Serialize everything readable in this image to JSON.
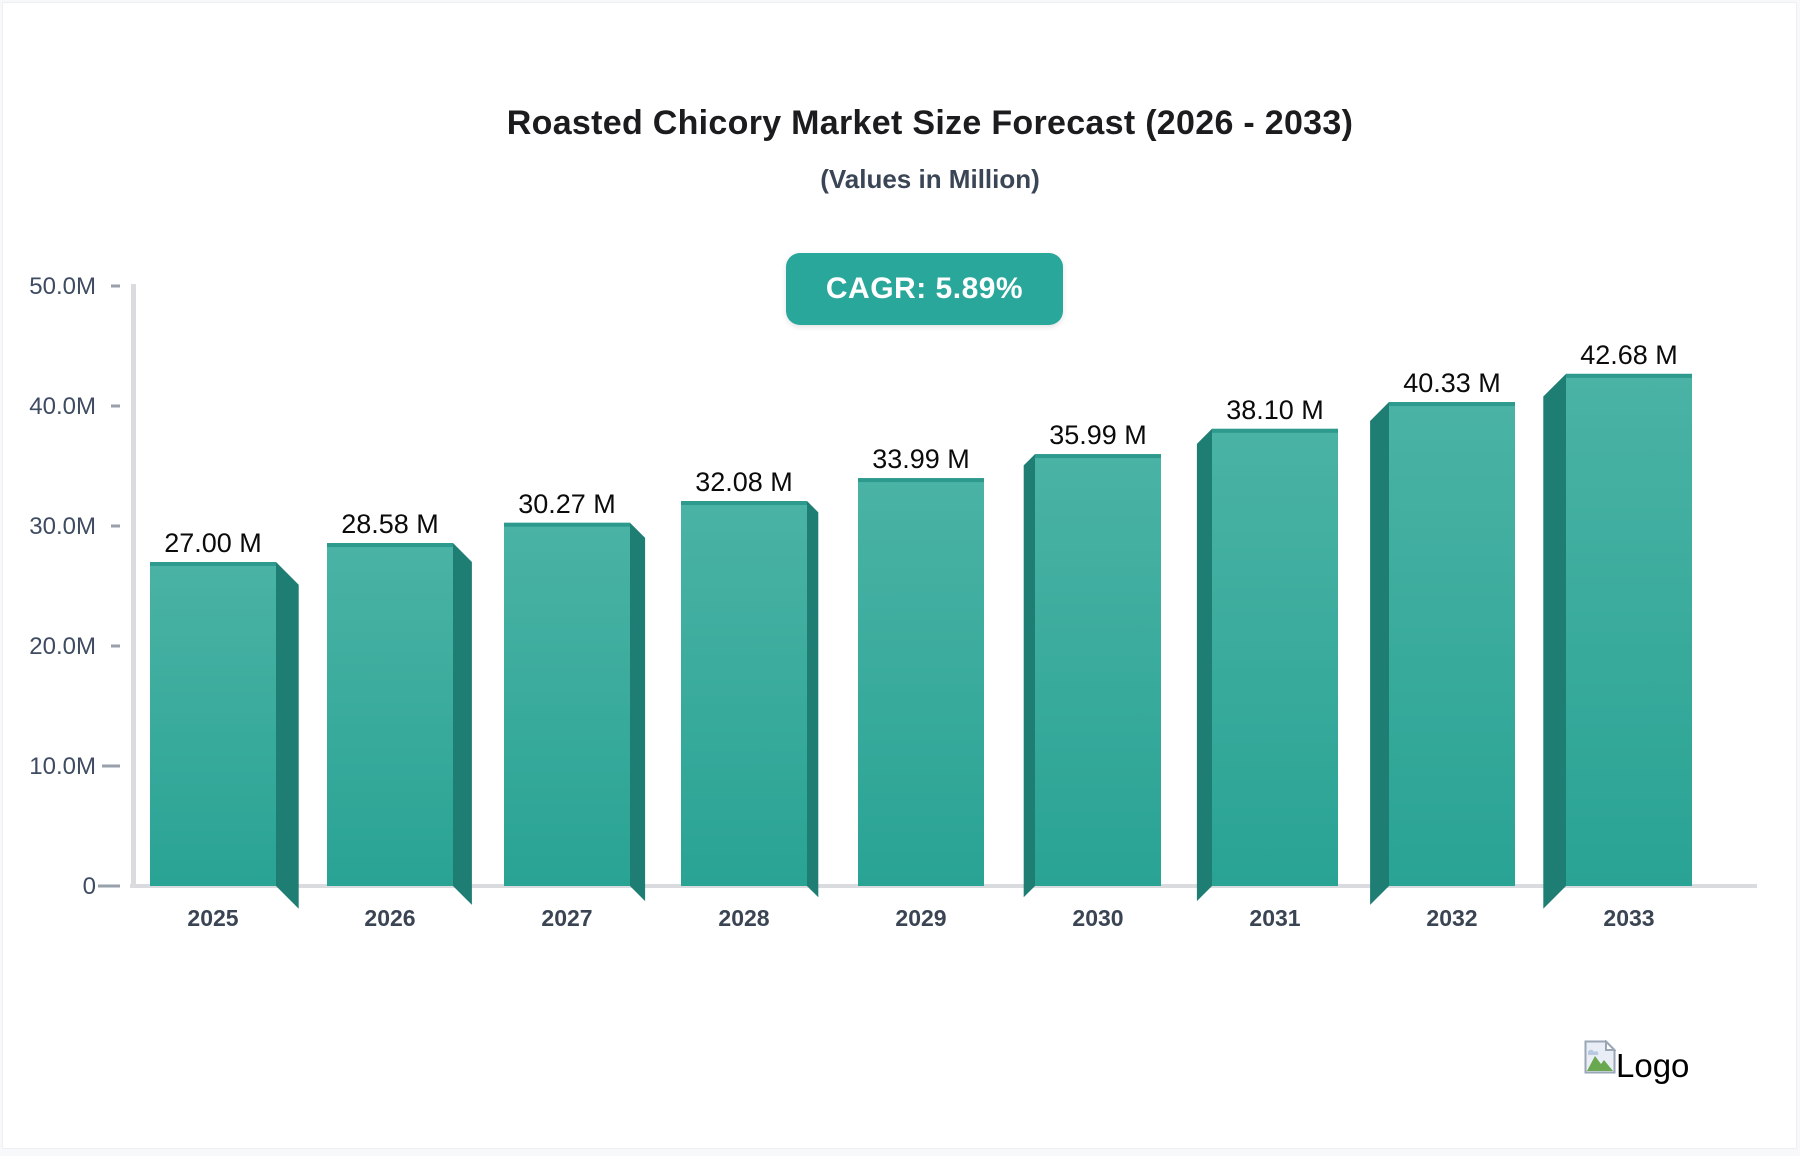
{
  "logo": {
    "alt_text": "Logo"
  },
  "chart_data": {
    "type": "bar",
    "title": "Roasted Chicory Market Size Forecast (2026 - 2033)",
    "subtitle": "(Values in Million)",
    "cagr_label": "CAGR: 5.89%",
    "cagr_percent": 5.89,
    "unit": "Million",
    "categories": [
      "2025",
      "2026",
      "2027",
      "2028",
      "2029",
      "2030",
      "2031",
      "2032",
      "2033"
    ],
    "values": [
      27.0,
      28.58,
      30.27,
      32.08,
      33.99,
      35.99,
      38.1,
      40.33,
      42.68
    ],
    "value_labels": [
      "27.00 M",
      "28.58 M",
      "30.27 M",
      "32.08 M",
      "33.99 M",
      "35.99 M",
      "38.10 M",
      "40.33 M",
      "42.68 M"
    ],
    "xlabel": "",
    "ylabel": "",
    "ylim": [
      0,
      50
    ],
    "yticks": [
      0,
      10,
      20,
      30,
      40,
      50
    ],
    "ytick_labels": [
      "0",
      "10.0M",
      "20.0M",
      "30.0M",
      "40.0M",
      "50.0M"
    ],
    "grid": false,
    "legend": null,
    "bar_style": "3d-perspective-center-vanishing",
    "colors": {
      "bar_top": "#4ab3a5",
      "bar_bottom": "#29a394",
      "bar_top_edge": "#2e9a8e",
      "bar_side": "#1f7e73",
      "axis_line": "#d9dbdf",
      "tick": "#97a0ab",
      "ytick_label": "#3e4b61",
      "xtick_label": "#3a4453",
      "value_label": "#0b0b0b",
      "badge_bg": "#2aa79b",
      "badge_text": "#ffffff"
    }
  }
}
